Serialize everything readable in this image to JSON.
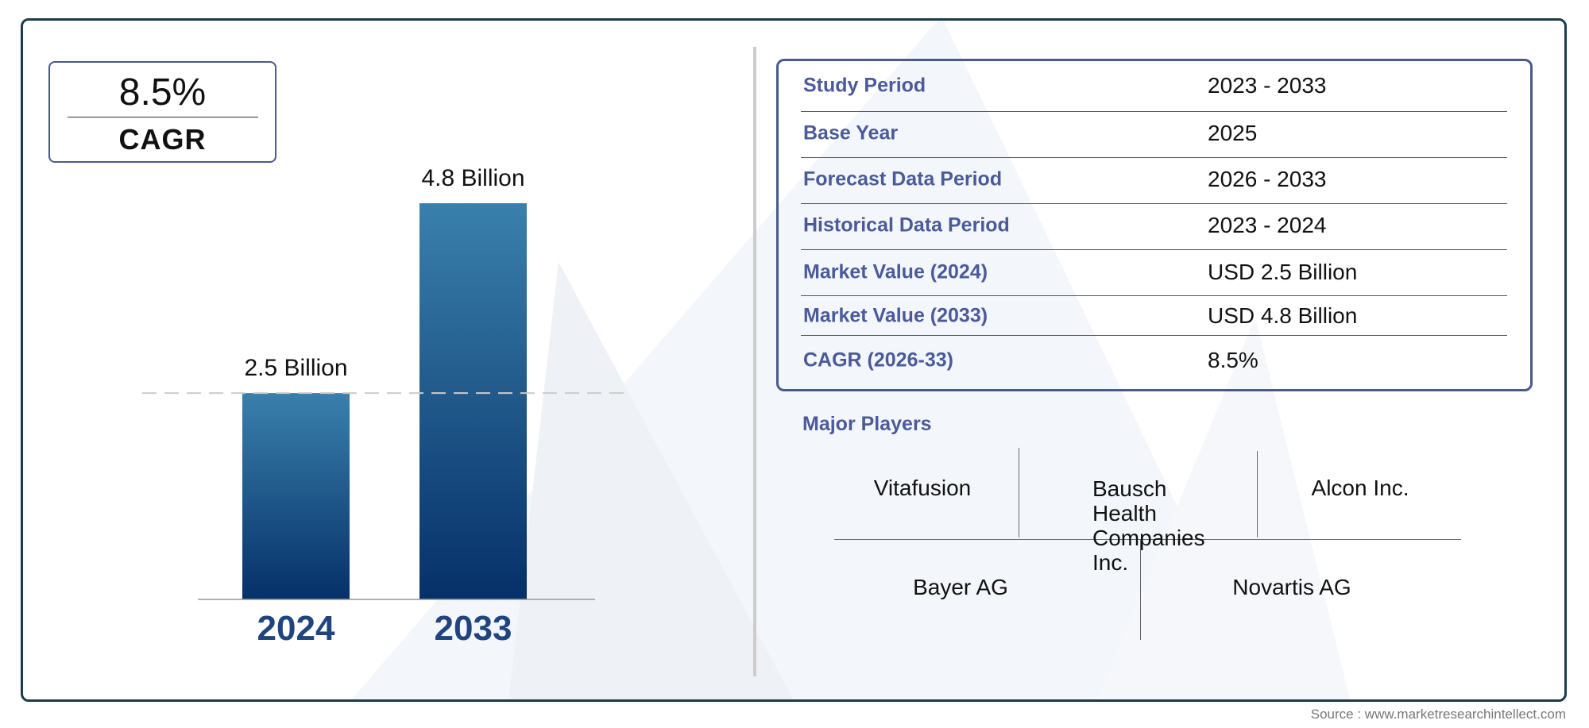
{
  "chart_data": {
    "type": "bar",
    "categories": [
      "2024",
      "2033"
    ],
    "values": [
      2.5,
      4.8
    ],
    "data_labels": [
      "2.5 Billion",
      "4.8 Billion"
    ],
    "unit": "Billion",
    "ylim": [
      0,
      4.8
    ],
    "grid": false,
    "reference_line_value": 2.5
  },
  "cagr": {
    "value": "8.5%",
    "label": "CAGR"
  },
  "table": {
    "rows": [
      {
        "label": "Study Period",
        "value": "2023 - 2033"
      },
      {
        "label": "Base Year",
        "value": "2025"
      },
      {
        "label": "Forecast Data Period",
        "value": "2026 - 2033"
      },
      {
        "label": "Historical Data Period",
        "value": "2023 - 2024"
      },
      {
        "label": "Market Value (2024)",
        "value": "USD 2.5 Billion"
      },
      {
        "label": "Market Value (2033)",
        "value": "USD 4.8 Billion"
      },
      {
        "label": "CAGR (2026-33)",
        "value": "8.5%"
      }
    ]
  },
  "major_players": {
    "title": "Major Players",
    "players": [
      "Vitafusion",
      "Bausch Health Companies Inc.",
      "Alcon Inc.",
      "Bayer AG",
      "Novartis AG"
    ]
  },
  "source": "Source : www.marketresearchintellect.com",
  "colors": {
    "frame": "#1b3a4b",
    "bar_top": "#3a80ac",
    "bar_bottom": "#063068",
    "label": "#4a5a9a",
    "year": "#1f4480"
  }
}
